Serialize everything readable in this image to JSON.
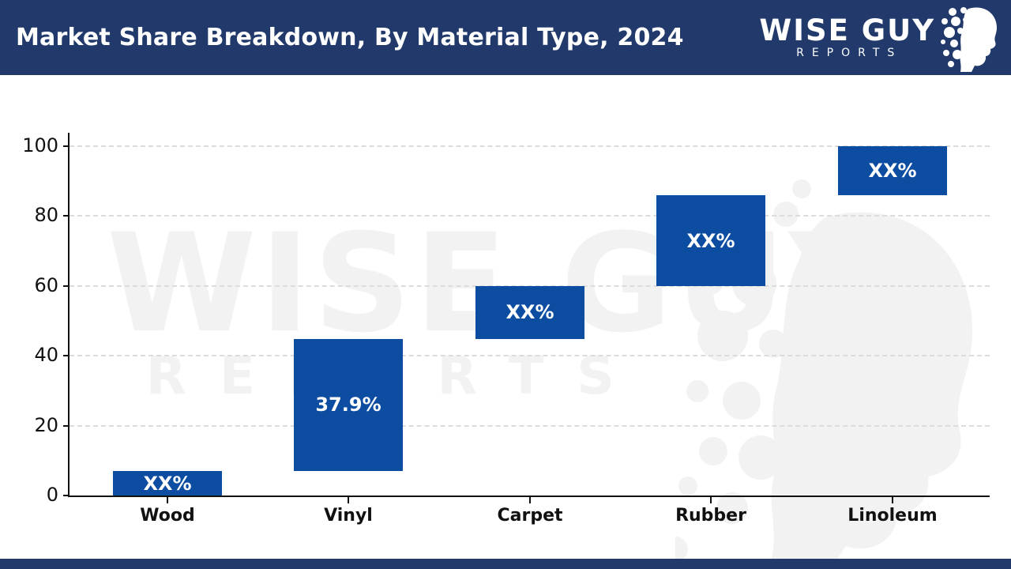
{
  "header": {
    "title": "Market Share Breakdown, By Material Type, 2024",
    "logo": {
      "line1": "WISE GUY",
      "line2": "REPORTS"
    }
  },
  "watermark": {
    "line1": "WISE GUY",
    "line2": "REPORTS"
  },
  "chart_data": {
    "type": "bar",
    "subtype": "waterfall",
    "title": "Market Share Breakdown, By Material Type, 2024",
    "categories": [
      "Wood",
      "Vinyl",
      "Carpet",
      "Rubber",
      "Linoleum"
    ],
    "segments": [
      {
        "category": "Wood",
        "start": 0,
        "end": 7,
        "label": "XX%"
      },
      {
        "category": "Vinyl",
        "start": 7,
        "end": 44.9,
        "label": "37.9%"
      },
      {
        "category": "Carpet",
        "start": 44.9,
        "end": 59.9,
        "label": "XX%"
      },
      {
        "category": "Rubber",
        "start": 59.9,
        "end": 85.9,
        "label": "XX%"
      },
      {
        "category": "Linoleum",
        "start": 85.9,
        "end": 99.9,
        "label": "XX%"
      }
    ],
    "yticks": [
      0,
      20,
      40,
      60,
      80,
      100
    ],
    "ylim": [
      0,
      104
    ],
    "xlabel": "",
    "ylabel": "",
    "grid": "horizontal-dashed",
    "legend": "none"
  },
  "colors": {
    "header_bg": "#213A6B",
    "footer_bg": "#213A6B",
    "bar": "#0C4DA2",
    "bar_label": "#FFFFFF",
    "grid": "#DCDCDC",
    "axis": "#111111",
    "watermark": "#F2F2F2",
    "title_text": "#FFFFFF"
  }
}
